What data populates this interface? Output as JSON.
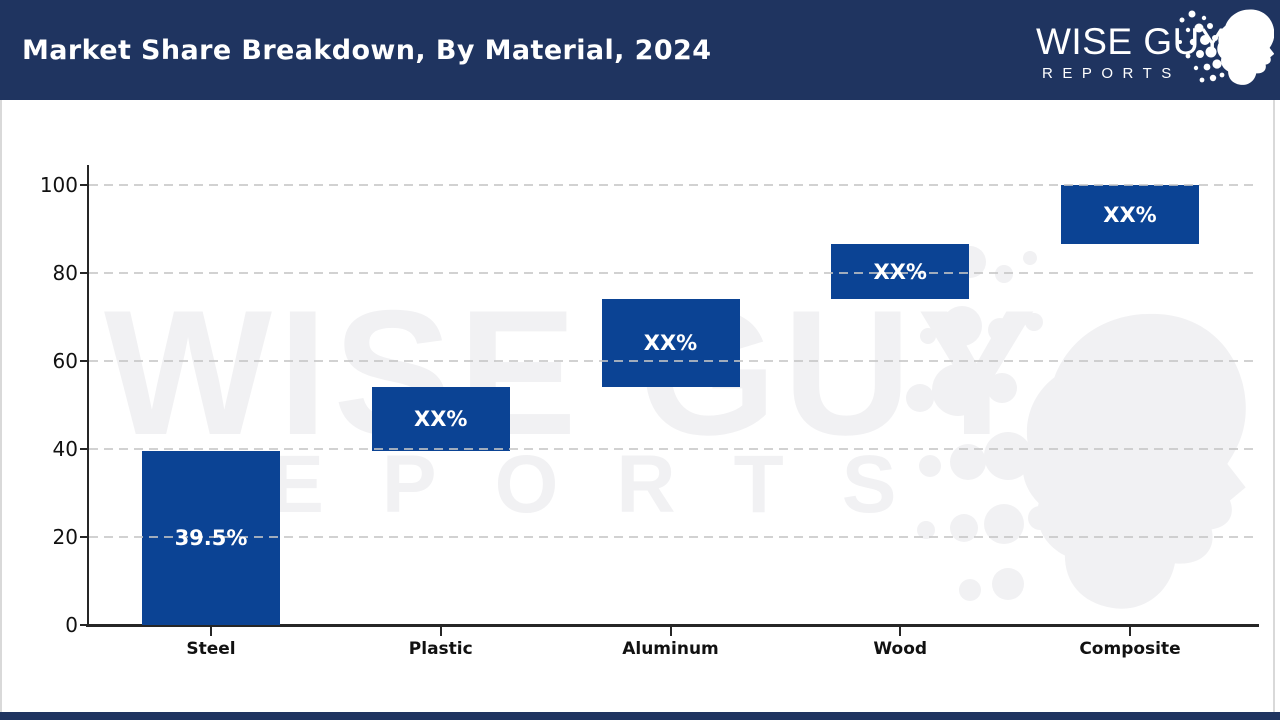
{
  "header": {
    "title": "Market Share Breakdown, By Material, 2024",
    "logo_line1": "WISE GUY",
    "logo_line2": "REPORTS"
  },
  "watermark": {
    "line1": "WISE GUY",
    "line2": "REPORTS"
  },
  "footer": {},
  "chart_data": {
    "type": "bar",
    "subtype": "waterfall",
    "title": "Market Share Breakdown, By Material, 2024",
    "categories": [
      "Steel",
      "Plastic",
      "Aluminum",
      "Wood",
      "Composite"
    ],
    "bars": [
      {
        "category": "Steel",
        "start": 0,
        "end": 39.5,
        "label": "39.5%"
      },
      {
        "category": "Plastic",
        "start": 39.5,
        "end": 54,
        "label": "XX%"
      },
      {
        "category": "Aluminum",
        "start": 54,
        "end": 74,
        "label": "XX%"
      },
      {
        "category": "Wood",
        "start": 74,
        "end": 86.5,
        "label": "XX%"
      },
      {
        "category": "Composite",
        "start": 86.5,
        "end": 100,
        "label": "XX%"
      }
    ],
    "ylim": [
      0,
      100
    ],
    "yticks": [
      0,
      20,
      40,
      60,
      80,
      100
    ],
    "xlabel": "",
    "ylabel": "",
    "grid": "dashed-horizontal",
    "legend": "none",
    "bar_color": "#0b4394",
    "bar_label_color": "#ffffff"
  },
  "colors": {
    "header_bg": "#1f3460",
    "footer_bg": "#1f3460",
    "bar": "#0b4394",
    "axis": "#262626",
    "grid": "#c6c6c6",
    "watermark": "#f1f1f3"
  }
}
